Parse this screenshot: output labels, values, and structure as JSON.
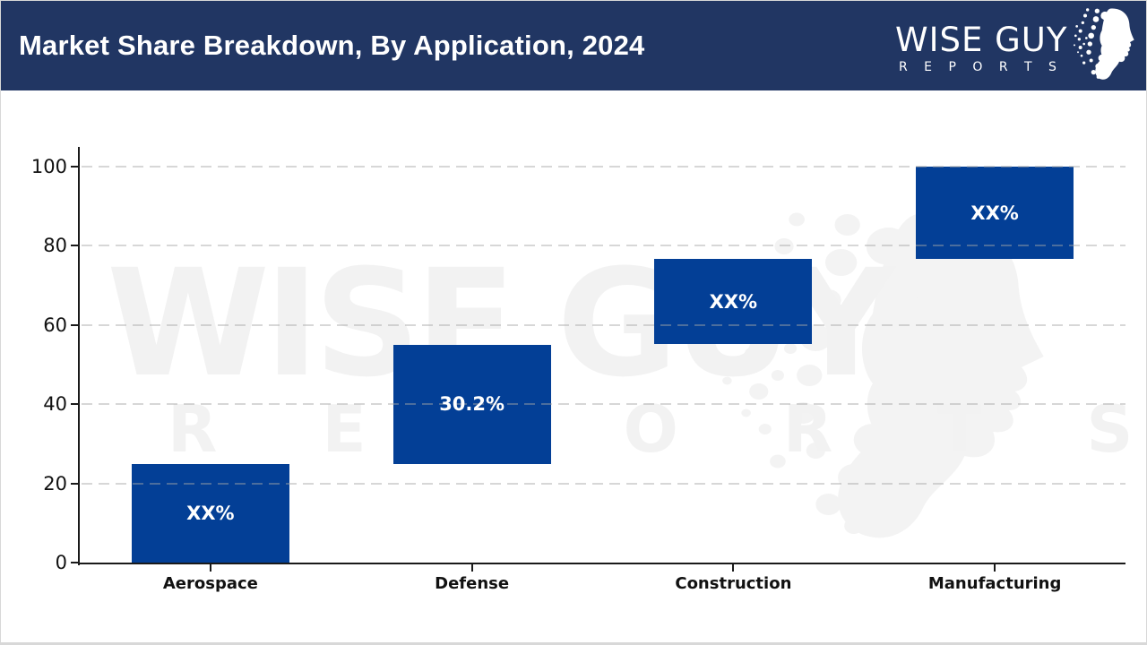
{
  "header": {
    "title": "Market Share Breakdown, By Application, 2024",
    "brand": {
      "line1": "WISE GUY",
      "line2": "R E P O R T S"
    },
    "colors": {
      "header_bg": "#213663",
      "logo": "#FFFFFF"
    }
  },
  "watermark": {
    "line1": "WISE GUY",
    "line2": "R E P O R T S",
    "color": "#F2F2F2"
  },
  "chart_data": {
    "type": "bar",
    "subtype": "waterfall-floating-bars",
    "title": "Market Share Breakdown, By Application, 2024",
    "categories": [
      "Aerospace",
      "Defense",
      "Construction",
      "Manufacturing"
    ],
    "bars": [
      {
        "category": "Aerospace",
        "base": 0,
        "top": 24.9,
        "label": "XX%"
      },
      {
        "category": "Defense",
        "base": 24.9,
        "top": 55.1,
        "label": "30.2%"
      },
      {
        "category": "Construction",
        "base": 55.1,
        "top": 76.7,
        "label": "XX%"
      },
      {
        "category": "Manufacturing",
        "base": 76.7,
        "top": 100,
        "label": "XX%"
      }
    ],
    "xlabel": "",
    "ylabel": "",
    "ylim": [
      0,
      105
    ],
    "yticks": [
      0,
      20,
      40,
      60,
      80,
      100
    ],
    "grid": true,
    "legend": false,
    "colors": {
      "bar": "#033F96",
      "bar_label": "#FFFFFF",
      "grid": "#D8D8D8",
      "axis": "#1A1A1A",
      "tick_label": "#111111"
    }
  }
}
